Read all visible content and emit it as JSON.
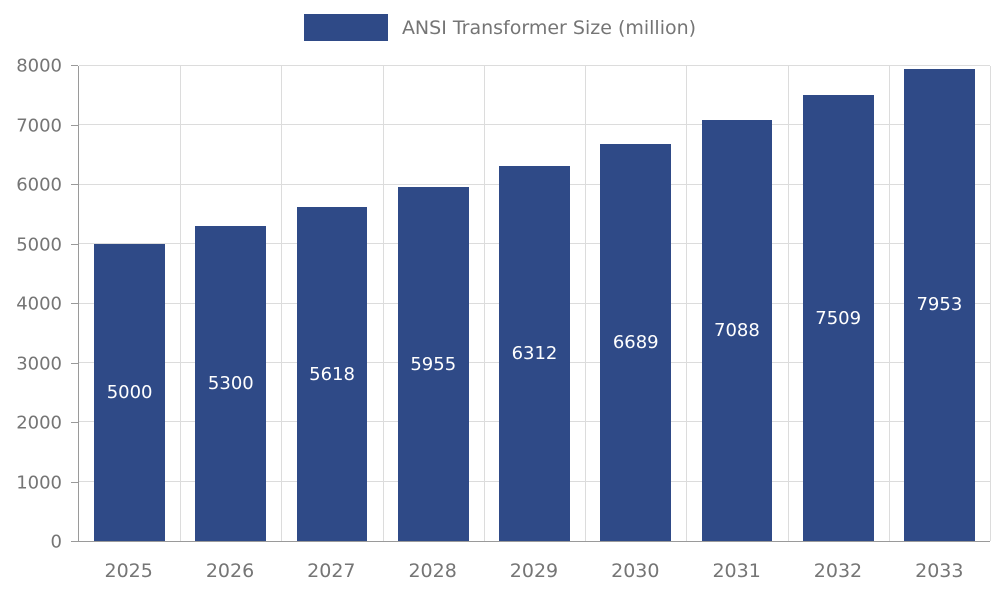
{
  "chart_data": {
    "type": "bar",
    "title": "ANSI Transformer Size (million)",
    "categories": [
      "2025",
      "2026",
      "2027",
      "2028",
      "2029",
      "2030",
      "2031",
      "2032",
      "2033"
    ],
    "values": [
      5000,
      5300,
      5618,
      5955,
      6312,
      6689,
      7088,
      7509,
      7953
    ],
    "xlabel": "",
    "ylabel": "",
    "ylim": [
      0,
      8000
    ],
    "yticks": [
      0,
      1000,
      2000,
      3000,
      4000,
      5000,
      6000,
      7000,
      8000
    ],
    "grid": true,
    "legend_position": "top",
    "bar_color": "#2f4a87",
    "value_label_color": "#ffffff",
    "axis_text_color": "#757575"
  }
}
